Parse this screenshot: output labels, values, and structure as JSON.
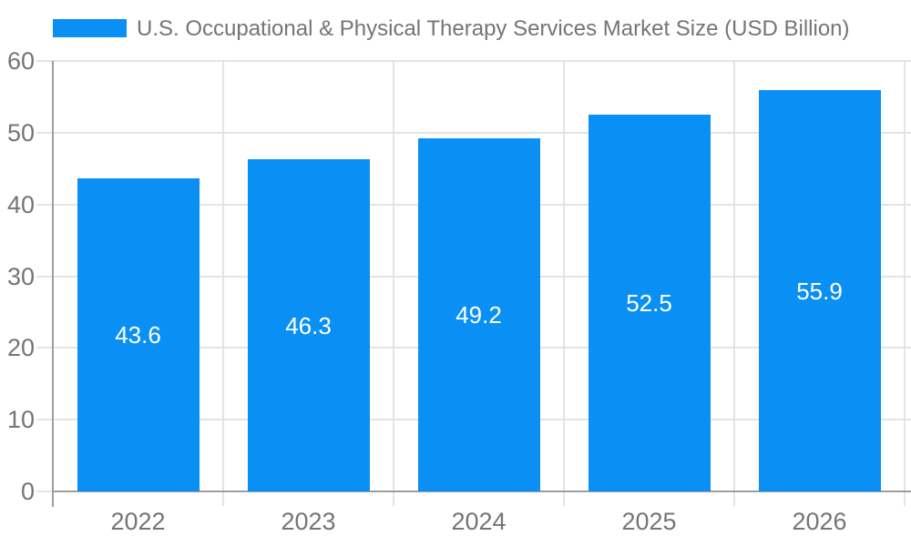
{
  "chart_data": {
    "type": "bar",
    "title": "U.S. Occupational & Physical Therapy Services Market Size (USD Billion)",
    "categories": [
      "2022",
      "2023",
      "2024",
      "2025",
      "2026"
    ],
    "values": [
      43.6,
      46.3,
      49.2,
      52.5,
      55.9
    ],
    "value_labels": [
      "43.6",
      "46.3",
      "49.2",
      "52.5",
      "55.9"
    ],
    "xlabel": "",
    "ylabel": "",
    "ylim": [
      0,
      60
    ],
    "yticks": [
      0,
      10,
      20,
      30,
      40,
      50,
      60
    ],
    "ytick_labels": [
      "0",
      "10",
      "20",
      "30",
      "40",
      "50",
      "60"
    ],
    "grid": true,
    "legend_position": "top",
    "colors": {
      "bar": "#0a90f5",
      "grid_line": "#e4e4e4",
      "axis_line": "#9e9e9e",
      "axis_text": "#757575",
      "value_label_text": "#ffffff",
      "background": "#ffffff"
    }
  }
}
